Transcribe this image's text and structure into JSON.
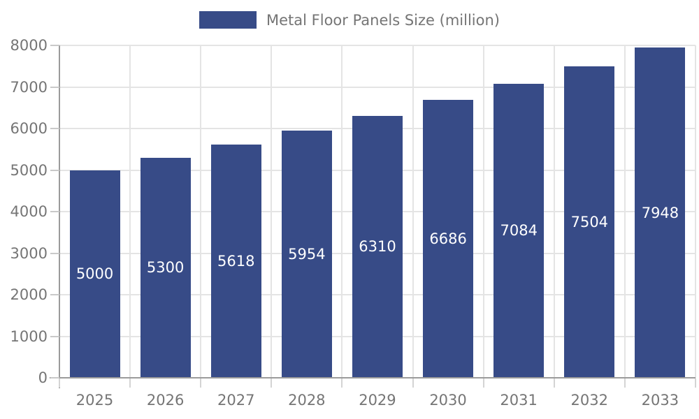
{
  "legend": {
    "label": "Metal Floor Panels Size (million)"
  },
  "chart_data": {
    "type": "bar",
    "title": "Metal Floor Panels Size (million)",
    "categories": [
      "2025",
      "2026",
      "2027",
      "2028",
      "2029",
      "2030",
      "2031",
      "2032",
      "2033"
    ],
    "series": [
      {
        "name": "Metal Floor Panels Size (million)",
        "values": [
          5000,
          5300,
          5618,
          5954,
          6310,
          6686,
          7084,
          7504,
          7948
        ]
      }
    ],
    "xlabel": "",
    "ylabel": "",
    "ylim": [
      0,
      8000
    ],
    "yticks": [
      0,
      1000,
      2000,
      3000,
      4000,
      5000,
      6000,
      7000,
      8000
    ],
    "grid": true,
    "legend_position": "top-center",
    "bar_value_labels": "inside-middle",
    "colors": {
      "bar": "#374B87",
      "bar_label": "#ffffff",
      "axis_text": "#757575",
      "gridline": "#e4e4e4",
      "axis_line": "#9b9b9b"
    }
  }
}
